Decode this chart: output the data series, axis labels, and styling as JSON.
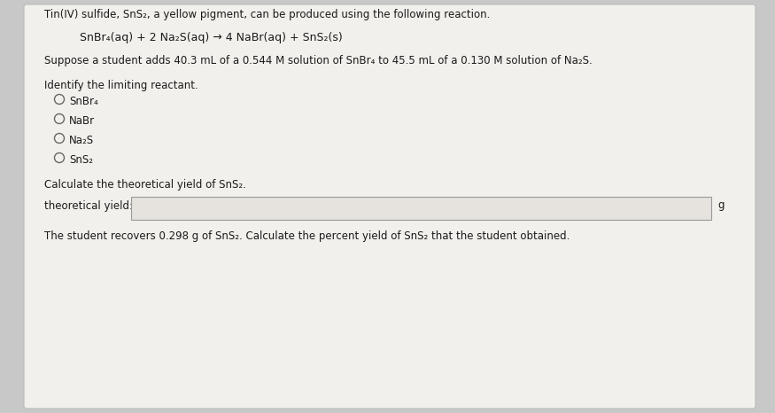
{
  "bg_color": "#c8c8c8",
  "panel_color": "#f2f0ec",
  "panel_border": "#bbbbbb",
  "title_line": "Tin(IV) sulfide, SnS₂, a yellow pigment, can be produced using the following reaction.",
  "reaction_line": "SnBr₄(aq) + 2 Na₂S(aq) → 4 NaBr(aq) + SnS₂(s)",
  "suppose_line": "Suppose a student adds 40.3 mL of a 0.544 M solution of SnBr₄ to 45.5 mL of a 0.130 M solution of Na₂S.",
  "identify_line": "Identify the limiting reactant.",
  "radio_options": [
    "SnBr₄",
    "NaBr",
    "Na₂S",
    "SnS₂"
  ],
  "calc_line": "Calculate the theoretical yield of SnS₂.",
  "theoretical_yield_label": "theoretical yield:",
  "theoretical_yield_unit": "g",
  "last_line": "The student recovers 0.298 g of SnS₂. Calculate the percent yield of SnS₂ that the student obtained.",
  "font_size": 8.5,
  "text_color": "#1a1a1a"
}
